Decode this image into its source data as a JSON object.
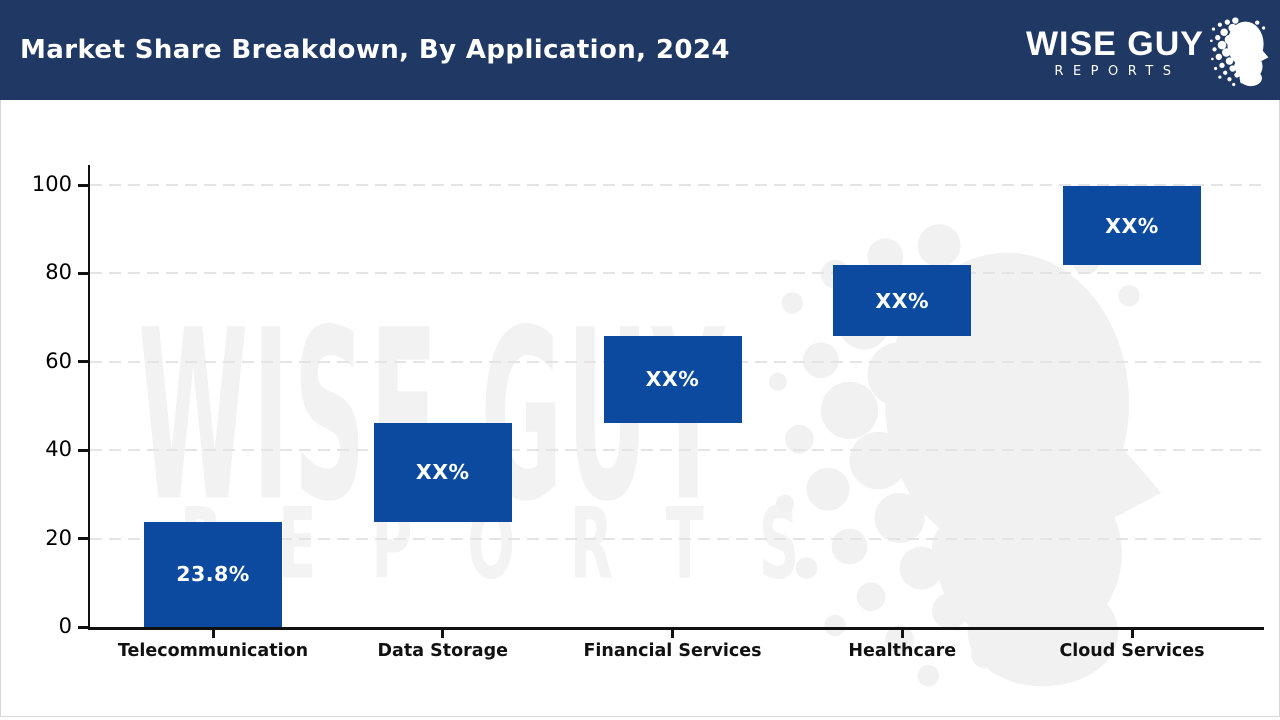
{
  "header": {
    "title": "Market Share Breakdown, By Application, 2024",
    "logo": {
      "name": "WISE GUY",
      "tagline": "REPORTS"
    }
  },
  "watermark": {
    "name": "WISE GUY",
    "tagline": "REPORTS"
  },
  "chart_data": {
    "type": "bar",
    "subtype": "waterfall",
    "title": "Market Share Breakdown, By Application, 2024",
    "categories": [
      "Telecommunication",
      "Data Storage",
      "Financial Services",
      "Healthcare",
      "Cloud Services"
    ],
    "segments": [
      {
        "category": "Telecommunication",
        "start": 0,
        "end": 23.8,
        "label": "23.8%"
      },
      {
        "category": "Data Storage",
        "start": 23.8,
        "end": 46.2,
        "label": "XX%"
      },
      {
        "category": "Financial Services",
        "start": 46.2,
        "end": 65.8,
        "label": "XX%"
      },
      {
        "category": "Healthcare",
        "start": 65.8,
        "end": 81.8,
        "label": "XX%"
      },
      {
        "category": "Cloud Services",
        "start": 81.8,
        "end": 99.8,
        "label": "XX%"
      }
    ],
    "ylim": [
      0,
      104.5
    ],
    "yticks": [
      0,
      20,
      40,
      60,
      80,
      100
    ],
    "grid": "horizontal-dashed",
    "legend": "none",
    "bar_color": "#0b4a9f",
    "bar_label_color": "#ffffff",
    "axis_color": "#111111",
    "header_color": "#1f3864"
  }
}
